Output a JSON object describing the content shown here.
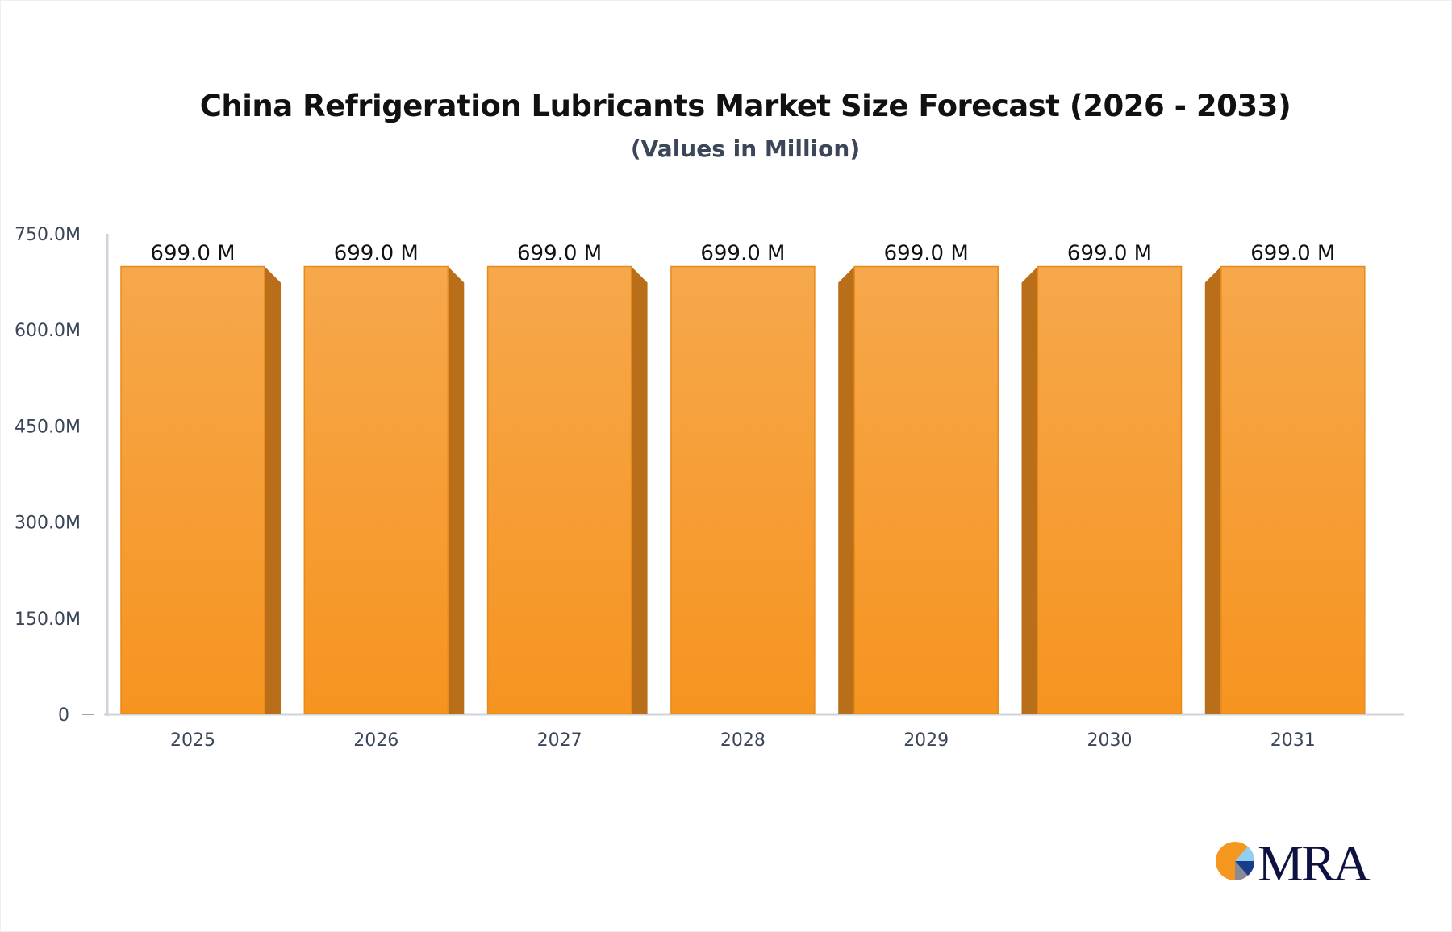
{
  "chart_data": {
    "type": "bar",
    "title": "China Refrigeration Lubricants Market Size Forecast (2026 - 2033)",
    "subtitle": "(Values in Million)",
    "categories": [
      "2025",
      "2026",
      "2027",
      "2028",
      "2029",
      "2030",
      "2031"
    ],
    "values": [
      699.0,
      699.0,
      699.0,
      699.0,
      699.0,
      699.0,
      699.0
    ],
    "data_labels": [
      "699.0 M",
      "699.0 M",
      "699.0 M",
      "699.0 M",
      "699.0 M",
      "699.0 M",
      "699.0 M"
    ],
    "yticks": [
      0,
      150,
      300,
      450,
      600,
      750
    ],
    "ytick_labels": [
      "0",
      "150.0M",
      "300.0M",
      "450.0M",
      "600.0M",
      "750.0M"
    ],
    "ylim": [
      0,
      750
    ],
    "xlabel": "",
    "ylabel": "",
    "grid": false,
    "legend": "none",
    "colors": {
      "bar_top": "#f6a84c",
      "bar_bottom": "#f69420",
      "bar_side": "#b96e1a",
      "axis": "#d0d3da"
    }
  },
  "logo": {
    "text": "MRA"
  }
}
